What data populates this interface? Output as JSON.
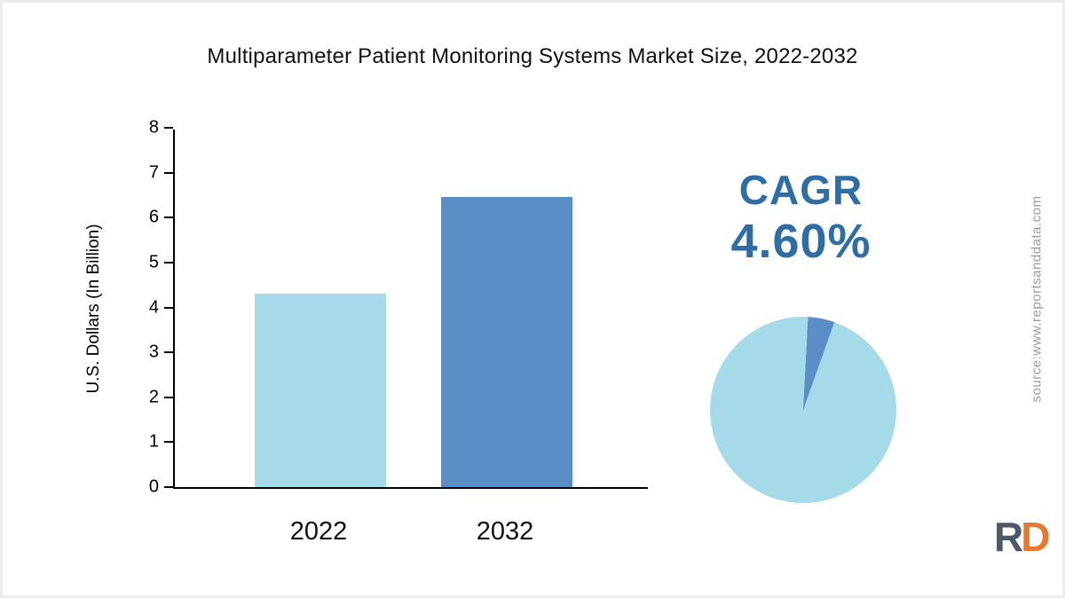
{
  "title": "Multiparameter Patient Monitoring Systems Market Size, 2022-2032",
  "chart_data": {
    "type": "bar",
    "title": "Multiparameter Patient Monitoring Systems Market Size, 2022-2032",
    "categories": [
      "2022",
      "2032"
    ],
    "values": [
      4.3,
      6.45
    ],
    "bar_colors": [
      "#a5dbe8",
      "#5b8ec6"
    ],
    "xlabel": "",
    "ylabel": "U.S. Dollars (In Billion)",
    "ylim": [
      0,
      8
    ],
    "yticks": [
      0,
      1,
      2,
      3,
      4,
      5,
      6,
      7,
      8
    ],
    "grid": false,
    "legend": "none"
  },
  "cagr": {
    "label": "CAGR",
    "value": "4.60%",
    "percent": 4.6,
    "color": "#2e6da6"
  },
  "pie": {
    "slice_percent": 4.6,
    "start_deg": 3,
    "main_color": "#a5dbe8",
    "slice_color": "#5b8ec6"
  },
  "source": {
    "text": "source:www.reportsanddata.com"
  },
  "logo": {
    "letter_r": "R",
    "letter_d": "D",
    "r_color": "#4b5a66",
    "d_color": "#e8782f"
  }
}
